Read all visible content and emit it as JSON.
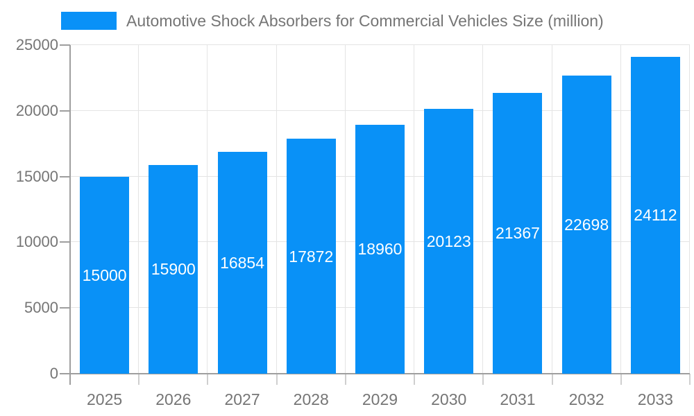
{
  "legend": {
    "position": "top-left"
  },
  "chart_data": {
    "type": "bar",
    "series_name": "Automotive Shock Absorbers for Commercial Vehicles Size (million)",
    "categories": [
      "2025",
      "2026",
      "2027",
      "2028",
      "2029",
      "2030",
      "2031",
      "2032",
      "2033"
    ],
    "values": [
      15000,
      15900,
      16854,
      17872,
      18960,
      20123,
      21367,
      22698,
      24112
    ],
    "title": "Automotive Shock Absorbers for Commercial Vehicles Size (million)",
    "xlabel": "",
    "ylabel": "",
    "ylim": [
      0,
      25000
    ],
    "y_ticks": [
      0,
      5000,
      10000,
      15000,
      20000,
      25000
    ],
    "grid": true,
    "legend_position": "top-left",
    "value_labels_position": "inside-center"
  },
  "colors": {
    "bar": "#0991f7",
    "axis": "#9e9e9e",
    "gridline": "#e4e4e4",
    "x_tick": "#cfcfcf",
    "label_text": "#757575",
    "value_label_text": "#ffffff",
    "background": "#ffffff"
  }
}
